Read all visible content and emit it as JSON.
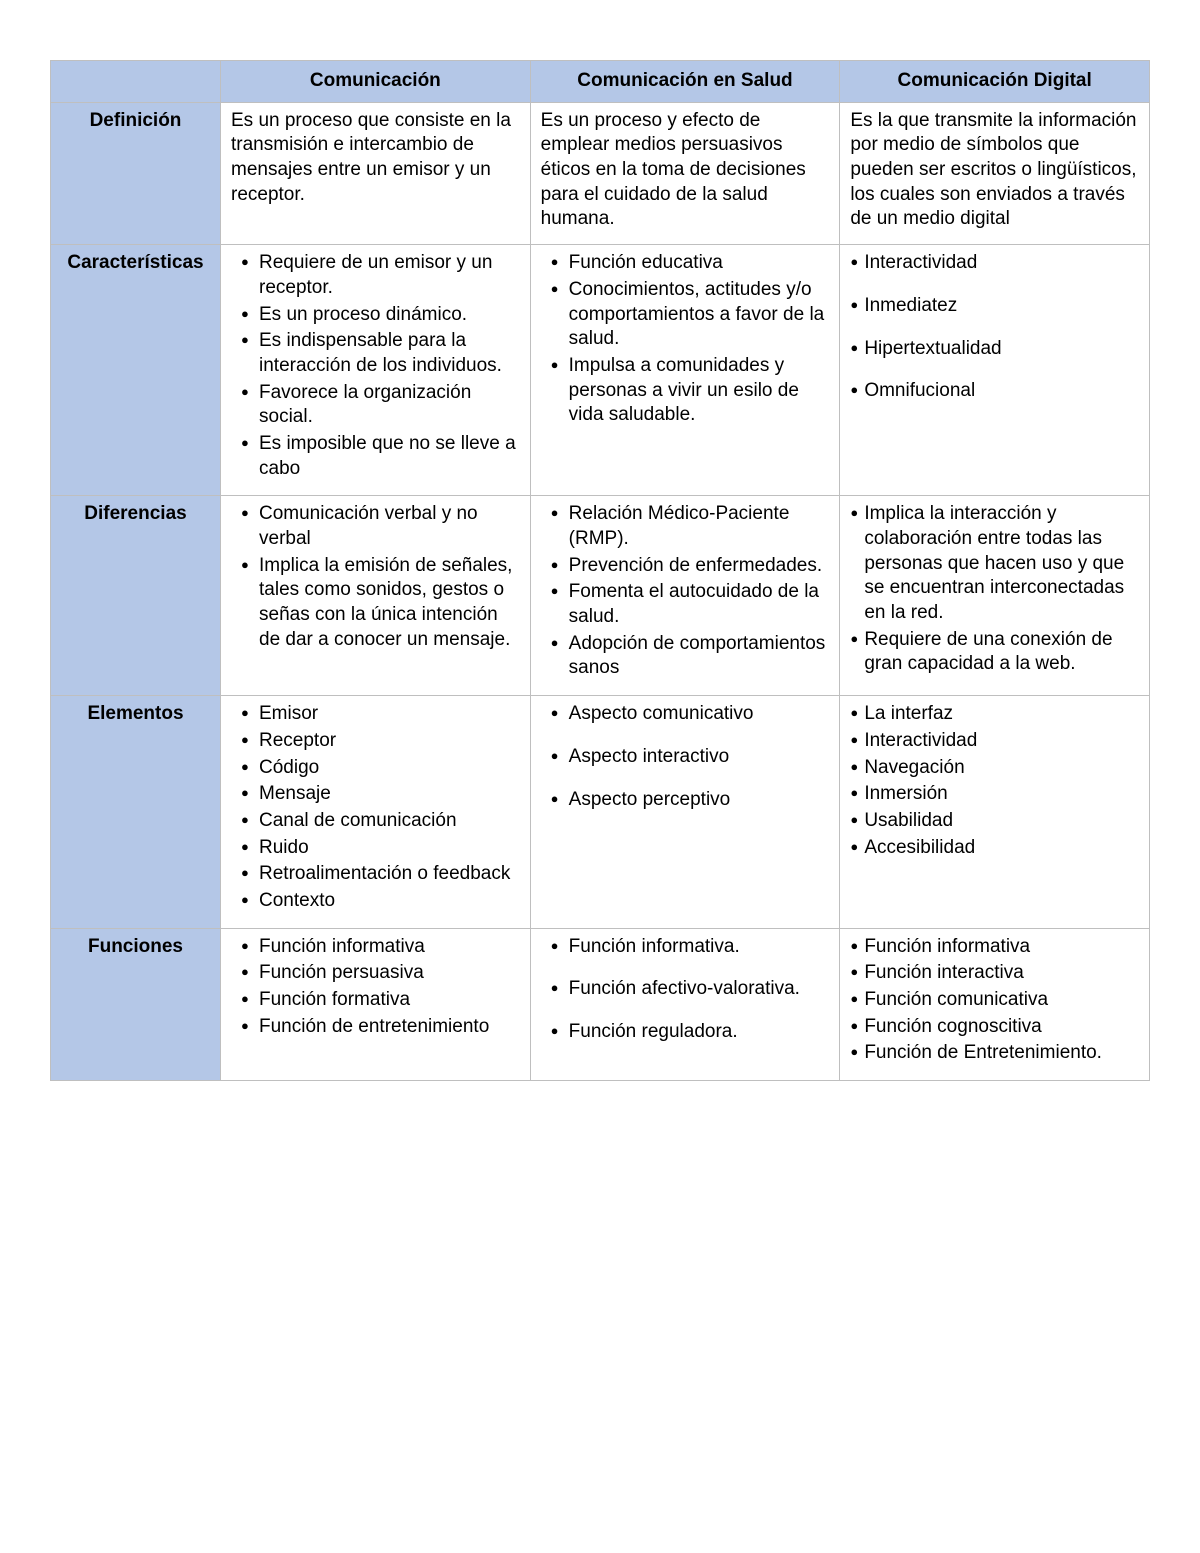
{
  "colors": {
    "header_bg": "#b4c7e7",
    "border": "#bfbfbf",
    "text": "#000000",
    "page_bg": "#ffffff"
  },
  "headers": {
    "c1": "Comunicación",
    "c2": "Comunicación en Salud",
    "c3": "Comunicación Digital"
  },
  "rows": {
    "definicion": {
      "label": "Definición",
      "c1": "Es un proceso que consiste en la transmisión e intercambio de mensajes entre un emisor y un receptor.",
      "c2": "Es un proceso y efecto de emplear medios persuasivos éticos en la toma de decisiones para el cuidado de la salud humana.",
      "c3": "Es la que transmite la información por medio de símbolos que pueden ser escritos o lingüísticos, los cuales son enviados a través de un medio digital"
    },
    "caracteristicas": {
      "label": "Características",
      "c1": [
        "Requiere de un emisor y un receptor.",
        "Es un proceso dinámico.",
        "Es indispensable para la interacción de los individuos.",
        "Favorece la organización social.",
        "Es imposible que no se lleve a cabo"
      ],
      "c2": [
        "Función educativa",
        "Conocimientos, actitudes y/o comportamientos a favor de la salud.",
        "Impulsa a comunidades y personas a vivir un esilo de vida saludable."
      ],
      "c3": [
        "Interactividad",
        "Inmediatez",
        "Hipertextualidad",
        "Omnifucional"
      ]
    },
    "diferencias": {
      "label": "Diferencias",
      "c1": [
        "Comunicación verbal y no verbal",
        "Implica la emisión de señales, tales como sonidos, gestos o señas con la única intención de dar a conocer un mensaje."
      ],
      "c2": [
        "Relación Médico-Paciente (RMP).",
        "Prevención de enfermedades.",
        "Fomenta el autocuidado de la salud.",
        "Adopción de comportamientos sanos"
      ],
      "c3": [
        "Implica la interacción y colaboración entre todas las personas que hacen uso y que se encuentran interconectadas en la red.",
        "Requiere de una conexión de gran  capacidad a la web."
      ]
    },
    "elementos": {
      "label": "Elementos",
      "c1": [
        "Emisor",
        "Receptor",
        "Código",
        "Mensaje",
        "Canal de comunicación",
        "Ruido",
        "Retroalimentación o feedback",
        "Contexto"
      ],
      "c2": [
        "Aspecto comunicativo",
        "Aspecto interactivo",
        "Aspecto perceptivo"
      ],
      "c3": [
        "La interfaz",
        "Interactividad",
        "Navegación",
        "Inmersión",
        "Usabilidad",
        "Accesibilidad"
      ]
    },
    "funciones": {
      "label": "Funciones",
      "c1": [
        "Función informativa",
        "Función persuasiva",
        "Función formativa",
        "Función de entretenimiento"
      ],
      "c2": [
        "Función informativa.",
        "Función afectivo-valorativa.",
        "Función reguladora."
      ],
      "c3": [
        " Función informativa",
        "Función interactiva",
        "Función comunicativa",
        "Función cognoscitiva",
        " Función de Entretenimiento."
      ]
    }
  }
}
